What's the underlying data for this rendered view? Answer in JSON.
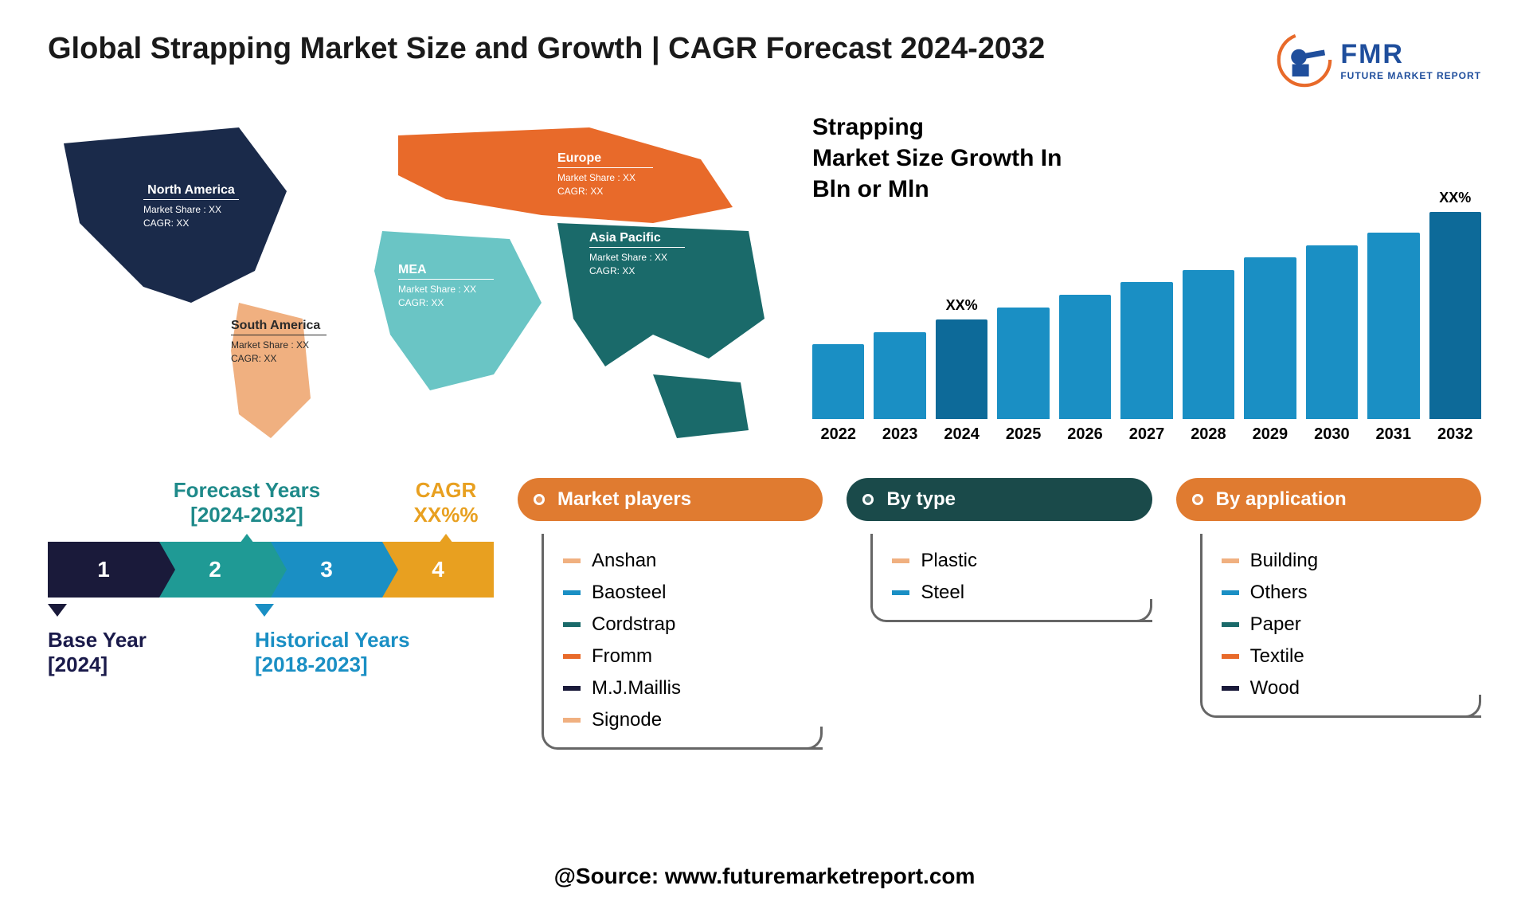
{
  "title": "Global Strapping  Market Size and Growth | CAGR Forecast 2024-2032",
  "logo": {
    "fmr": "FMR",
    "sub": "FUTURE MARKET REPORT"
  },
  "map": {
    "regions": [
      {
        "key": "na",
        "name": "North America",
        "share": "Market Share : XX",
        "cagr": "CAGR: XX",
        "color": "#1a2a4a",
        "text": "light"
      },
      {
        "key": "sa",
        "name": "South America",
        "share": "Market Share : XX",
        "cagr": "CAGR: XX",
        "color": "#f0b080",
        "text": "dark"
      },
      {
        "key": "eu",
        "name": "Europe",
        "share": "Market Share : XX",
        "cagr": "CAGR: XX",
        "color": "#e86a2a",
        "text": "light"
      },
      {
        "key": "mea",
        "name": "MEA",
        "share": "Market Share : XX",
        "cagr": "CAGR: XX",
        "color": "#6ac5c5",
        "text": "light"
      },
      {
        "key": "ap",
        "name": "Asia Pacific",
        "share": "Market Share : XX",
        "cagr": "CAGR: XX",
        "color": "#1a6a6a",
        "text": "light"
      }
    ]
  },
  "chart": {
    "title_l1": "Strapping",
    "title_l2": "Market Size Growth In",
    "title_l3": "Bln or Mln",
    "type": "bar",
    "years": [
      "2022",
      "2023",
      "2024",
      "2025",
      "2026",
      "2027",
      "2028",
      "2029",
      "2030",
      "2031",
      "2032"
    ],
    "heights_pct": [
      36,
      42,
      48,
      54,
      60,
      66,
      72,
      78,
      84,
      90,
      100
    ],
    "label_2024": "XX%",
    "label_2032": "XX%",
    "bar_color_light": "#1a8fc4",
    "bar_color_dark": "#0d6a99",
    "dark_indices": [
      2,
      10
    ]
  },
  "timeline": {
    "forecast_label": "Forecast Years",
    "forecast_range": "[2024-2032]",
    "cagr_label": "CAGR",
    "cagr_value": "XX%%",
    "base_label": "Base Year",
    "base_value": "[2024]",
    "hist_label": "Historical Years",
    "hist_range": "[2018-2023]",
    "steps": [
      "1",
      "2",
      "3",
      "4"
    ],
    "colors": {
      "base": "#1a1a3a",
      "forecast": "#1f9a95",
      "hist": "#1a8fc4",
      "cagr": "#e8a020"
    }
  },
  "pills": {
    "market_players": {
      "title": "Market players",
      "pill_color": "#e07b30",
      "items": [
        {
          "label": "Anshan",
          "color": "#f0b080"
        },
        {
          "label": "Baosteel",
          "color": "#1a8fc4"
        },
        {
          "label": "Cordstrap",
          "color": "#1a6a6a"
        },
        {
          "label": "Fromm",
          "color": "#e86a2a"
        },
        {
          "label": "M.J.Maillis",
          "color": "#1a1a3a"
        },
        {
          "label": "Signode",
          "color": "#f0b080"
        }
      ]
    },
    "by_type": {
      "title": "By type",
      "pill_color": "#1a4a4a",
      "items": [
        {
          "label": "Plastic",
          "color": "#f0b080"
        },
        {
          "label": "Steel",
          "color": "#1a8fc4"
        }
      ]
    },
    "by_application": {
      "title": "By application",
      "pill_color": "#e07b30",
      "items": [
        {
          "label": "Building",
          "color": "#f0b080"
        },
        {
          "label": "Others",
          "color": "#1a8fc4"
        },
        {
          "label": "Paper",
          "color": "#1a6a6a"
        },
        {
          "label": "Textile",
          "color": "#e86a2a"
        },
        {
          "label": "Wood",
          "color": "#1a1a3a"
        }
      ]
    }
  },
  "source": "@Source: www.futuremarketreport.com"
}
